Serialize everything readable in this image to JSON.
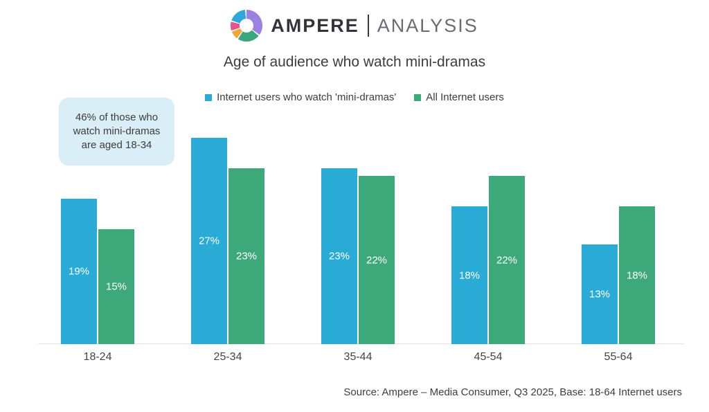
{
  "header": {
    "brand": "AMPERE",
    "suffix": "ANALYSIS"
  },
  "title": "Age of audience who watch mini-dramas",
  "legend": [
    {
      "label": "Internet users who watch 'mini-dramas'",
      "color": "#29abd6"
    },
    {
      "label": "All Internet users",
      "color": "#3da87a"
    }
  ],
  "annotation": {
    "lines": [
      "46% of those who",
      "watch mini-dramas",
      "are aged 18-34"
    ],
    "background": "#d9eef7"
  },
  "chart_data": {
    "type": "bar",
    "categories": [
      "18-24",
      "25-34",
      "35-44",
      "45-54",
      "55-64"
    ],
    "series": [
      {
        "name": "Internet users who watch 'mini-dramas'",
        "color": "#29abd6",
        "values": [
          19,
          27,
          23,
          18,
          13
        ]
      },
      {
        "name": "All Internet users",
        "color": "#3da87a",
        "values": [
          15,
          23,
          22,
          22,
          18
        ]
      }
    ],
    "value_suffix": "%",
    "value_labels": "inside-center",
    "ylim": [
      0,
      30
    ],
    "grid": false,
    "legend_position": "top",
    "title": "Age of audience who watch mini-dramas"
  },
  "source": "Source: Ampere – Media Consumer, Q3 2025, Base: 18-64 Internet users"
}
